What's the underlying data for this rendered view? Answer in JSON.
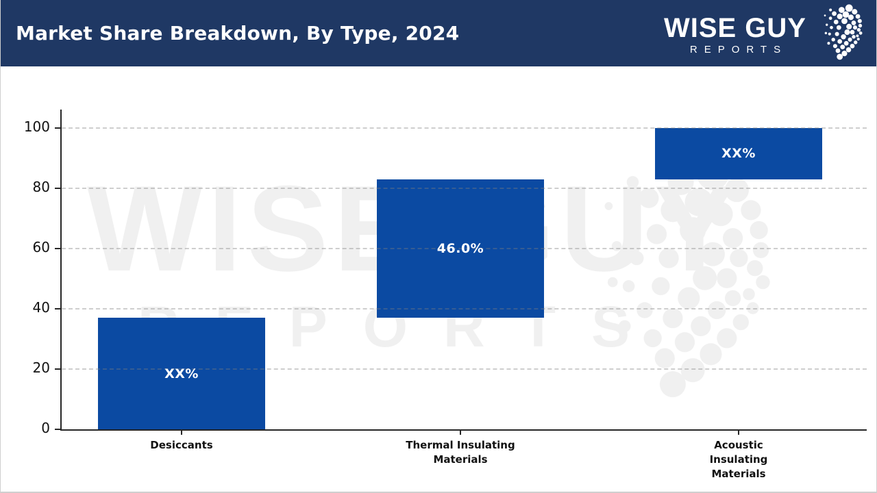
{
  "header": {
    "title": "Market Share Breakdown, By Type, 2024",
    "bg_color": "#1f3864",
    "logo": {
      "wordmark": "WISE GUY",
      "subtext": "REPORTS"
    }
  },
  "watermark": {
    "wordmark": "WISE GUY",
    "subtext": "REPORTS"
  },
  "chart_data": {
    "type": "bar",
    "variant": "waterfall",
    "title": "Market Share Breakdown, By Type, 2024",
    "xlabel": "",
    "ylabel": "",
    "ylim": [
      0,
      106
    ],
    "yticks": [
      0,
      20,
      40,
      60,
      80,
      100
    ],
    "grid": {
      "axis": "y",
      "style": "dashed",
      "above_bars": true
    },
    "bar_color": "#0b4aa2",
    "axis_color": "#262626",
    "bars": [
      {
        "category": "Desiccants",
        "label": "XX%",
        "base": 0,
        "top": 37
      },
      {
        "category": "Thermal Insulating\nMaterials",
        "label": "46.0%",
        "base": 37,
        "top": 83
      },
      {
        "category": "Acoustic\nInsulating\nMaterials",
        "label": "XX%",
        "base": 83,
        "top": 100
      }
    ]
  }
}
